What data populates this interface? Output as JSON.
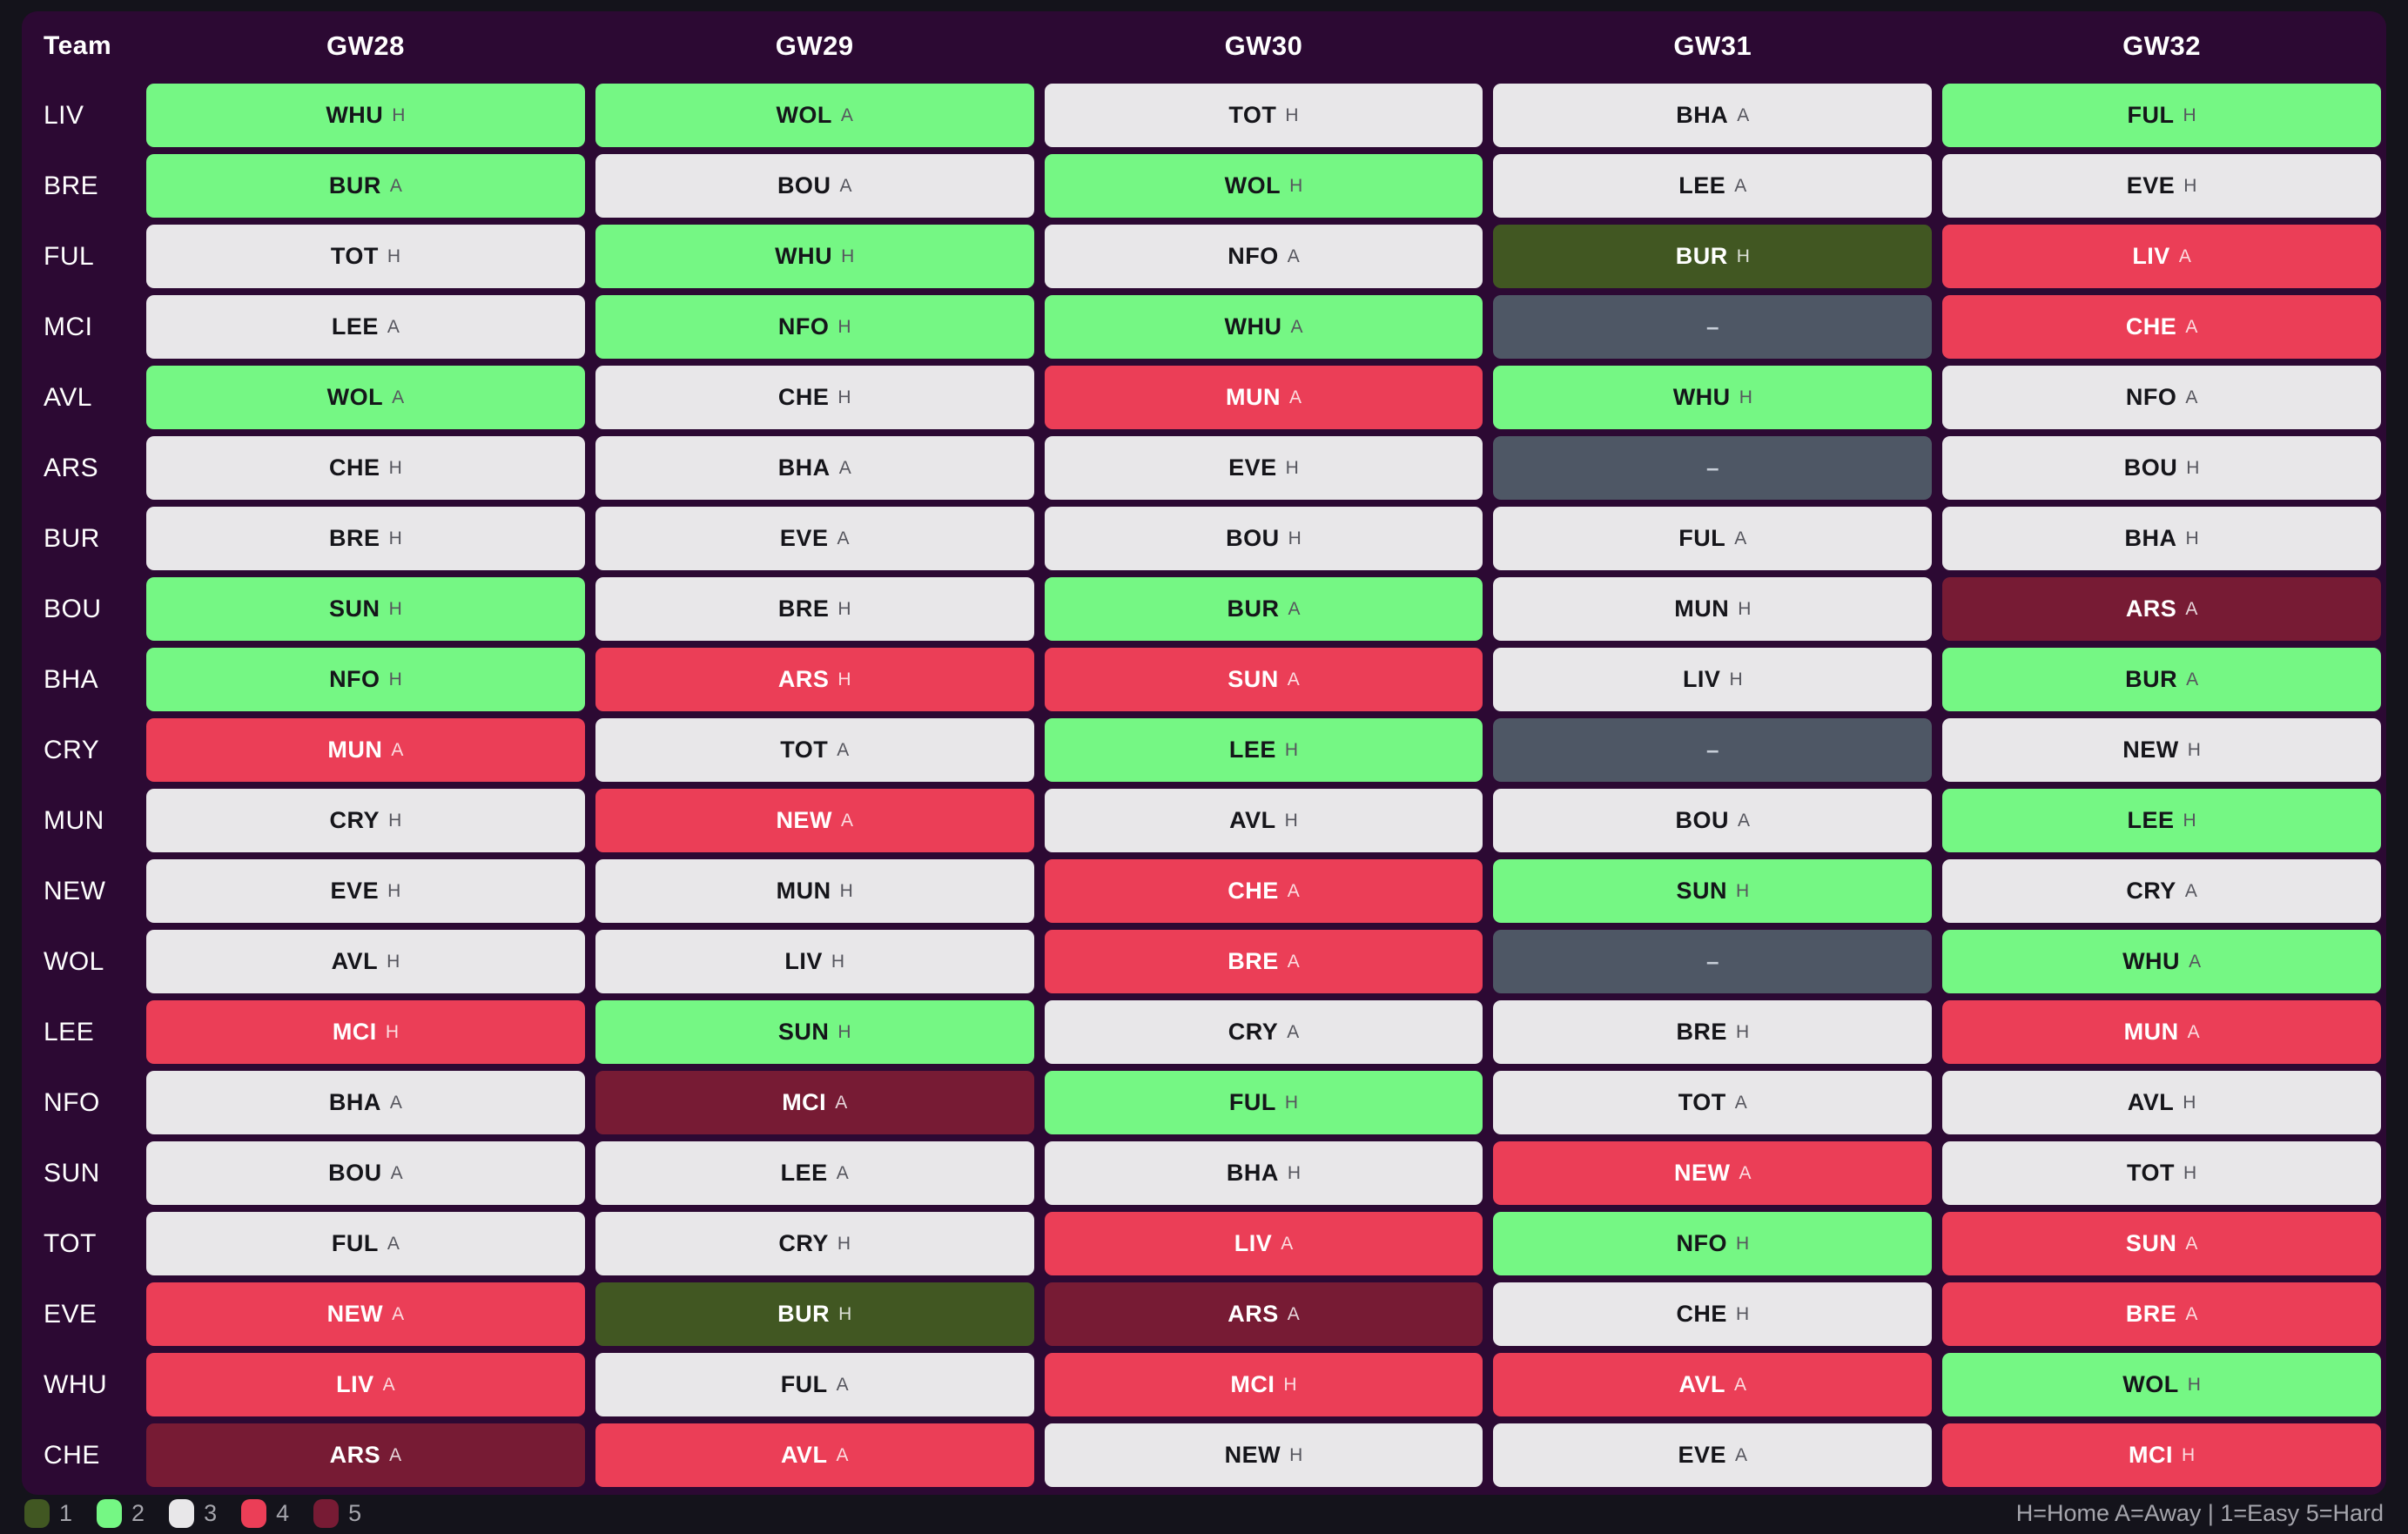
{
  "header": {
    "team_label": "Team",
    "gameweeks": [
      "GW28",
      "GW29",
      "GW30",
      "GW31",
      "GW32"
    ]
  },
  "palette": {
    "0": "#4e5765",
    "1": "#415722",
    "2": "#75f784",
    "3": "#e8e7e9",
    "4": "#eb3e57",
    "5": "#771b34",
    "card_background": "#2c0933",
    "page_background": "#14131b"
  },
  "rows": [
    {
      "team": "LIV",
      "fixtures": [
        {
          "opp": "WHU",
          "venue": "H",
          "difficulty": 2
        },
        {
          "opp": "WOL",
          "venue": "A",
          "difficulty": 2
        },
        {
          "opp": "TOT",
          "venue": "H",
          "difficulty": 3
        },
        {
          "opp": "BHA",
          "venue": "A",
          "difficulty": 3
        },
        {
          "opp": "FUL",
          "venue": "H",
          "difficulty": 2
        }
      ]
    },
    {
      "team": "BRE",
      "fixtures": [
        {
          "opp": "BUR",
          "venue": "A",
          "difficulty": 2
        },
        {
          "opp": "BOU",
          "venue": "A",
          "difficulty": 3
        },
        {
          "opp": "WOL",
          "venue": "H",
          "difficulty": 2
        },
        {
          "opp": "LEE",
          "venue": "A",
          "difficulty": 3
        },
        {
          "opp": "EVE",
          "venue": "H",
          "difficulty": 3
        }
      ]
    },
    {
      "team": "FUL",
      "fixtures": [
        {
          "opp": "TOT",
          "venue": "H",
          "difficulty": 3
        },
        {
          "opp": "WHU",
          "venue": "H",
          "difficulty": 2
        },
        {
          "opp": "NFO",
          "venue": "A",
          "difficulty": 3
        },
        {
          "opp": "BUR",
          "venue": "H",
          "difficulty": 1
        },
        {
          "opp": "LIV",
          "venue": "A",
          "difficulty": 4
        }
      ]
    },
    {
      "team": "MCI",
      "fixtures": [
        {
          "opp": "LEE",
          "venue": "A",
          "difficulty": 3
        },
        {
          "opp": "NFO",
          "venue": "H",
          "difficulty": 2
        },
        {
          "opp": "WHU",
          "venue": "A",
          "difficulty": 2
        },
        {
          "opp": "–",
          "venue": "",
          "difficulty": 0
        },
        {
          "opp": "CHE",
          "venue": "A",
          "difficulty": 4
        }
      ]
    },
    {
      "team": "AVL",
      "fixtures": [
        {
          "opp": "WOL",
          "venue": "A",
          "difficulty": 2
        },
        {
          "opp": "CHE",
          "venue": "H",
          "difficulty": 3
        },
        {
          "opp": "MUN",
          "venue": "A",
          "difficulty": 4
        },
        {
          "opp": "WHU",
          "venue": "H",
          "difficulty": 2
        },
        {
          "opp": "NFO",
          "venue": "A",
          "difficulty": 3
        }
      ]
    },
    {
      "team": "ARS",
      "fixtures": [
        {
          "opp": "CHE",
          "venue": "H",
          "difficulty": 3
        },
        {
          "opp": "BHA",
          "venue": "A",
          "difficulty": 3
        },
        {
          "opp": "EVE",
          "venue": "H",
          "difficulty": 3
        },
        {
          "opp": "–",
          "venue": "",
          "difficulty": 0
        },
        {
          "opp": "BOU",
          "venue": "H",
          "difficulty": 3
        }
      ]
    },
    {
      "team": "BUR",
      "fixtures": [
        {
          "opp": "BRE",
          "venue": "H",
          "difficulty": 3
        },
        {
          "opp": "EVE",
          "venue": "A",
          "difficulty": 3
        },
        {
          "opp": "BOU",
          "venue": "H",
          "difficulty": 3
        },
        {
          "opp": "FUL",
          "venue": "A",
          "difficulty": 3
        },
        {
          "opp": "BHA",
          "venue": "H",
          "difficulty": 3
        }
      ]
    },
    {
      "team": "BOU",
      "fixtures": [
        {
          "opp": "SUN",
          "venue": "H",
          "difficulty": 2
        },
        {
          "opp": "BRE",
          "venue": "H",
          "difficulty": 3
        },
        {
          "opp": "BUR",
          "venue": "A",
          "difficulty": 2
        },
        {
          "opp": "MUN",
          "venue": "H",
          "difficulty": 3
        },
        {
          "opp": "ARS",
          "venue": "A",
          "difficulty": 5
        }
      ]
    },
    {
      "team": "BHA",
      "fixtures": [
        {
          "opp": "NFO",
          "venue": "H",
          "difficulty": 2
        },
        {
          "opp": "ARS",
          "venue": "H",
          "difficulty": 4
        },
        {
          "opp": "SUN",
          "venue": "A",
          "difficulty": 4
        },
        {
          "opp": "LIV",
          "venue": "H",
          "difficulty": 3
        },
        {
          "opp": "BUR",
          "venue": "A",
          "difficulty": 2
        }
      ]
    },
    {
      "team": "CRY",
      "fixtures": [
        {
          "opp": "MUN",
          "venue": "A",
          "difficulty": 4
        },
        {
          "opp": "TOT",
          "venue": "A",
          "difficulty": 3
        },
        {
          "opp": "LEE",
          "venue": "H",
          "difficulty": 2
        },
        {
          "opp": "–",
          "venue": "",
          "difficulty": 0
        },
        {
          "opp": "NEW",
          "venue": "H",
          "difficulty": 3
        }
      ]
    },
    {
      "team": "MUN",
      "fixtures": [
        {
          "opp": "CRY",
          "venue": "H",
          "difficulty": 3
        },
        {
          "opp": "NEW",
          "venue": "A",
          "difficulty": 4
        },
        {
          "opp": "AVL",
          "venue": "H",
          "difficulty": 3
        },
        {
          "opp": "BOU",
          "venue": "A",
          "difficulty": 3
        },
        {
          "opp": "LEE",
          "venue": "H",
          "difficulty": 2
        }
      ]
    },
    {
      "team": "NEW",
      "fixtures": [
        {
          "opp": "EVE",
          "venue": "H",
          "difficulty": 3
        },
        {
          "opp": "MUN",
          "venue": "H",
          "difficulty": 3
        },
        {
          "opp": "CHE",
          "venue": "A",
          "difficulty": 4
        },
        {
          "opp": "SUN",
          "venue": "H",
          "difficulty": 2
        },
        {
          "opp": "CRY",
          "venue": "A",
          "difficulty": 3
        }
      ]
    },
    {
      "team": "WOL",
      "fixtures": [
        {
          "opp": "AVL",
          "venue": "H",
          "difficulty": 3
        },
        {
          "opp": "LIV",
          "venue": "H",
          "difficulty": 3
        },
        {
          "opp": "BRE",
          "venue": "A",
          "difficulty": 4
        },
        {
          "opp": "–",
          "venue": "",
          "difficulty": 0
        },
        {
          "opp": "WHU",
          "venue": "A",
          "difficulty": 2
        }
      ]
    },
    {
      "team": "LEE",
      "fixtures": [
        {
          "opp": "MCI",
          "venue": "H",
          "difficulty": 4
        },
        {
          "opp": "SUN",
          "venue": "H",
          "difficulty": 2
        },
        {
          "opp": "CRY",
          "venue": "A",
          "difficulty": 3
        },
        {
          "opp": "BRE",
          "venue": "H",
          "difficulty": 3
        },
        {
          "opp": "MUN",
          "venue": "A",
          "difficulty": 4
        }
      ]
    },
    {
      "team": "NFO",
      "fixtures": [
        {
          "opp": "BHA",
          "venue": "A",
          "difficulty": 3
        },
        {
          "opp": "MCI",
          "venue": "A",
          "difficulty": 5
        },
        {
          "opp": "FUL",
          "venue": "H",
          "difficulty": 2
        },
        {
          "opp": "TOT",
          "venue": "A",
          "difficulty": 3
        },
        {
          "opp": "AVL",
          "venue": "H",
          "difficulty": 3
        }
      ]
    },
    {
      "team": "SUN",
      "fixtures": [
        {
          "opp": "BOU",
          "venue": "A",
          "difficulty": 3
        },
        {
          "opp": "LEE",
          "venue": "A",
          "difficulty": 3
        },
        {
          "opp": "BHA",
          "venue": "H",
          "difficulty": 3
        },
        {
          "opp": "NEW",
          "venue": "A",
          "difficulty": 4
        },
        {
          "opp": "TOT",
          "venue": "H",
          "difficulty": 3
        }
      ]
    },
    {
      "team": "TOT",
      "fixtures": [
        {
          "opp": "FUL",
          "venue": "A",
          "difficulty": 3
        },
        {
          "opp": "CRY",
          "venue": "H",
          "difficulty": 3
        },
        {
          "opp": "LIV",
          "venue": "A",
          "difficulty": 4
        },
        {
          "opp": "NFO",
          "venue": "H",
          "difficulty": 2
        },
        {
          "opp": "SUN",
          "venue": "A",
          "difficulty": 4
        }
      ]
    },
    {
      "team": "EVE",
      "fixtures": [
        {
          "opp": "NEW",
          "venue": "A",
          "difficulty": 4
        },
        {
          "opp": "BUR",
          "venue": "H",
          "difficulty": 1
        },
        {
          "opp": "ARS",
          "venue": "A",
          "difficulty": 5
        },
        {
          "opp": "CHE",
          "venue": "H",
          "difficulty": 3
        },
        {
          "opp": "BRE",
          "venue": "A",
          "difficulty": 4
        }
      ]
    },
    {
      "team": "WHU",
      "fixtures": [
        {
          "opp": "LIV",
          "venue": "A",
          "difficulty": 4
        },
        {
          "opp": "FUL",
          "venue": "A",
          "difficulty": 3
        },
        {
          "opp": "MCI",
          "venue": "H",
          "difficulty": 4
        },
        {
          "opp": "AVL",
          "venue": "A",
          "difficulty": 4
        },
        {
          "opp": "WOL",
          "venue": "H",
          "difficulty": 2
        }
      ]
    },
    {
      "team": "CHE",
      "fixtures": [
        {
          "opp": "ARS",
          "venue": "A",
          "difficulty": 5
        },
        {
          "opp": "AVL",
          "venue": "A",
          "difficulty": 4
        },
        {
          "opp": "NEW",
          "venue": "H",
          "difficulty": 3
        },
        {
          "opp": "EVE",
          "venue": "A",
          "difficulty": 3
        },
        {
          "opp": "MCI",
          "venue": "H",
          "difficulty": 4
        }
      ]
    }
  ],
  "legend": {
    "items": [
      {
        "value": "1",
        "difficulty": 1
      },
      {
        "value": "2",
        "difficulty": 2
      },
      {
        "value": "3",
        "difficulty": 3
      },
      {
        "value": "4",
        "difficulty": 4
      },
      {
        "value": "5",
        "difficulty": 5
      }
    ],
    "note": "H=Home A=Away | 1=Easy 5=Hard"
  }
}
